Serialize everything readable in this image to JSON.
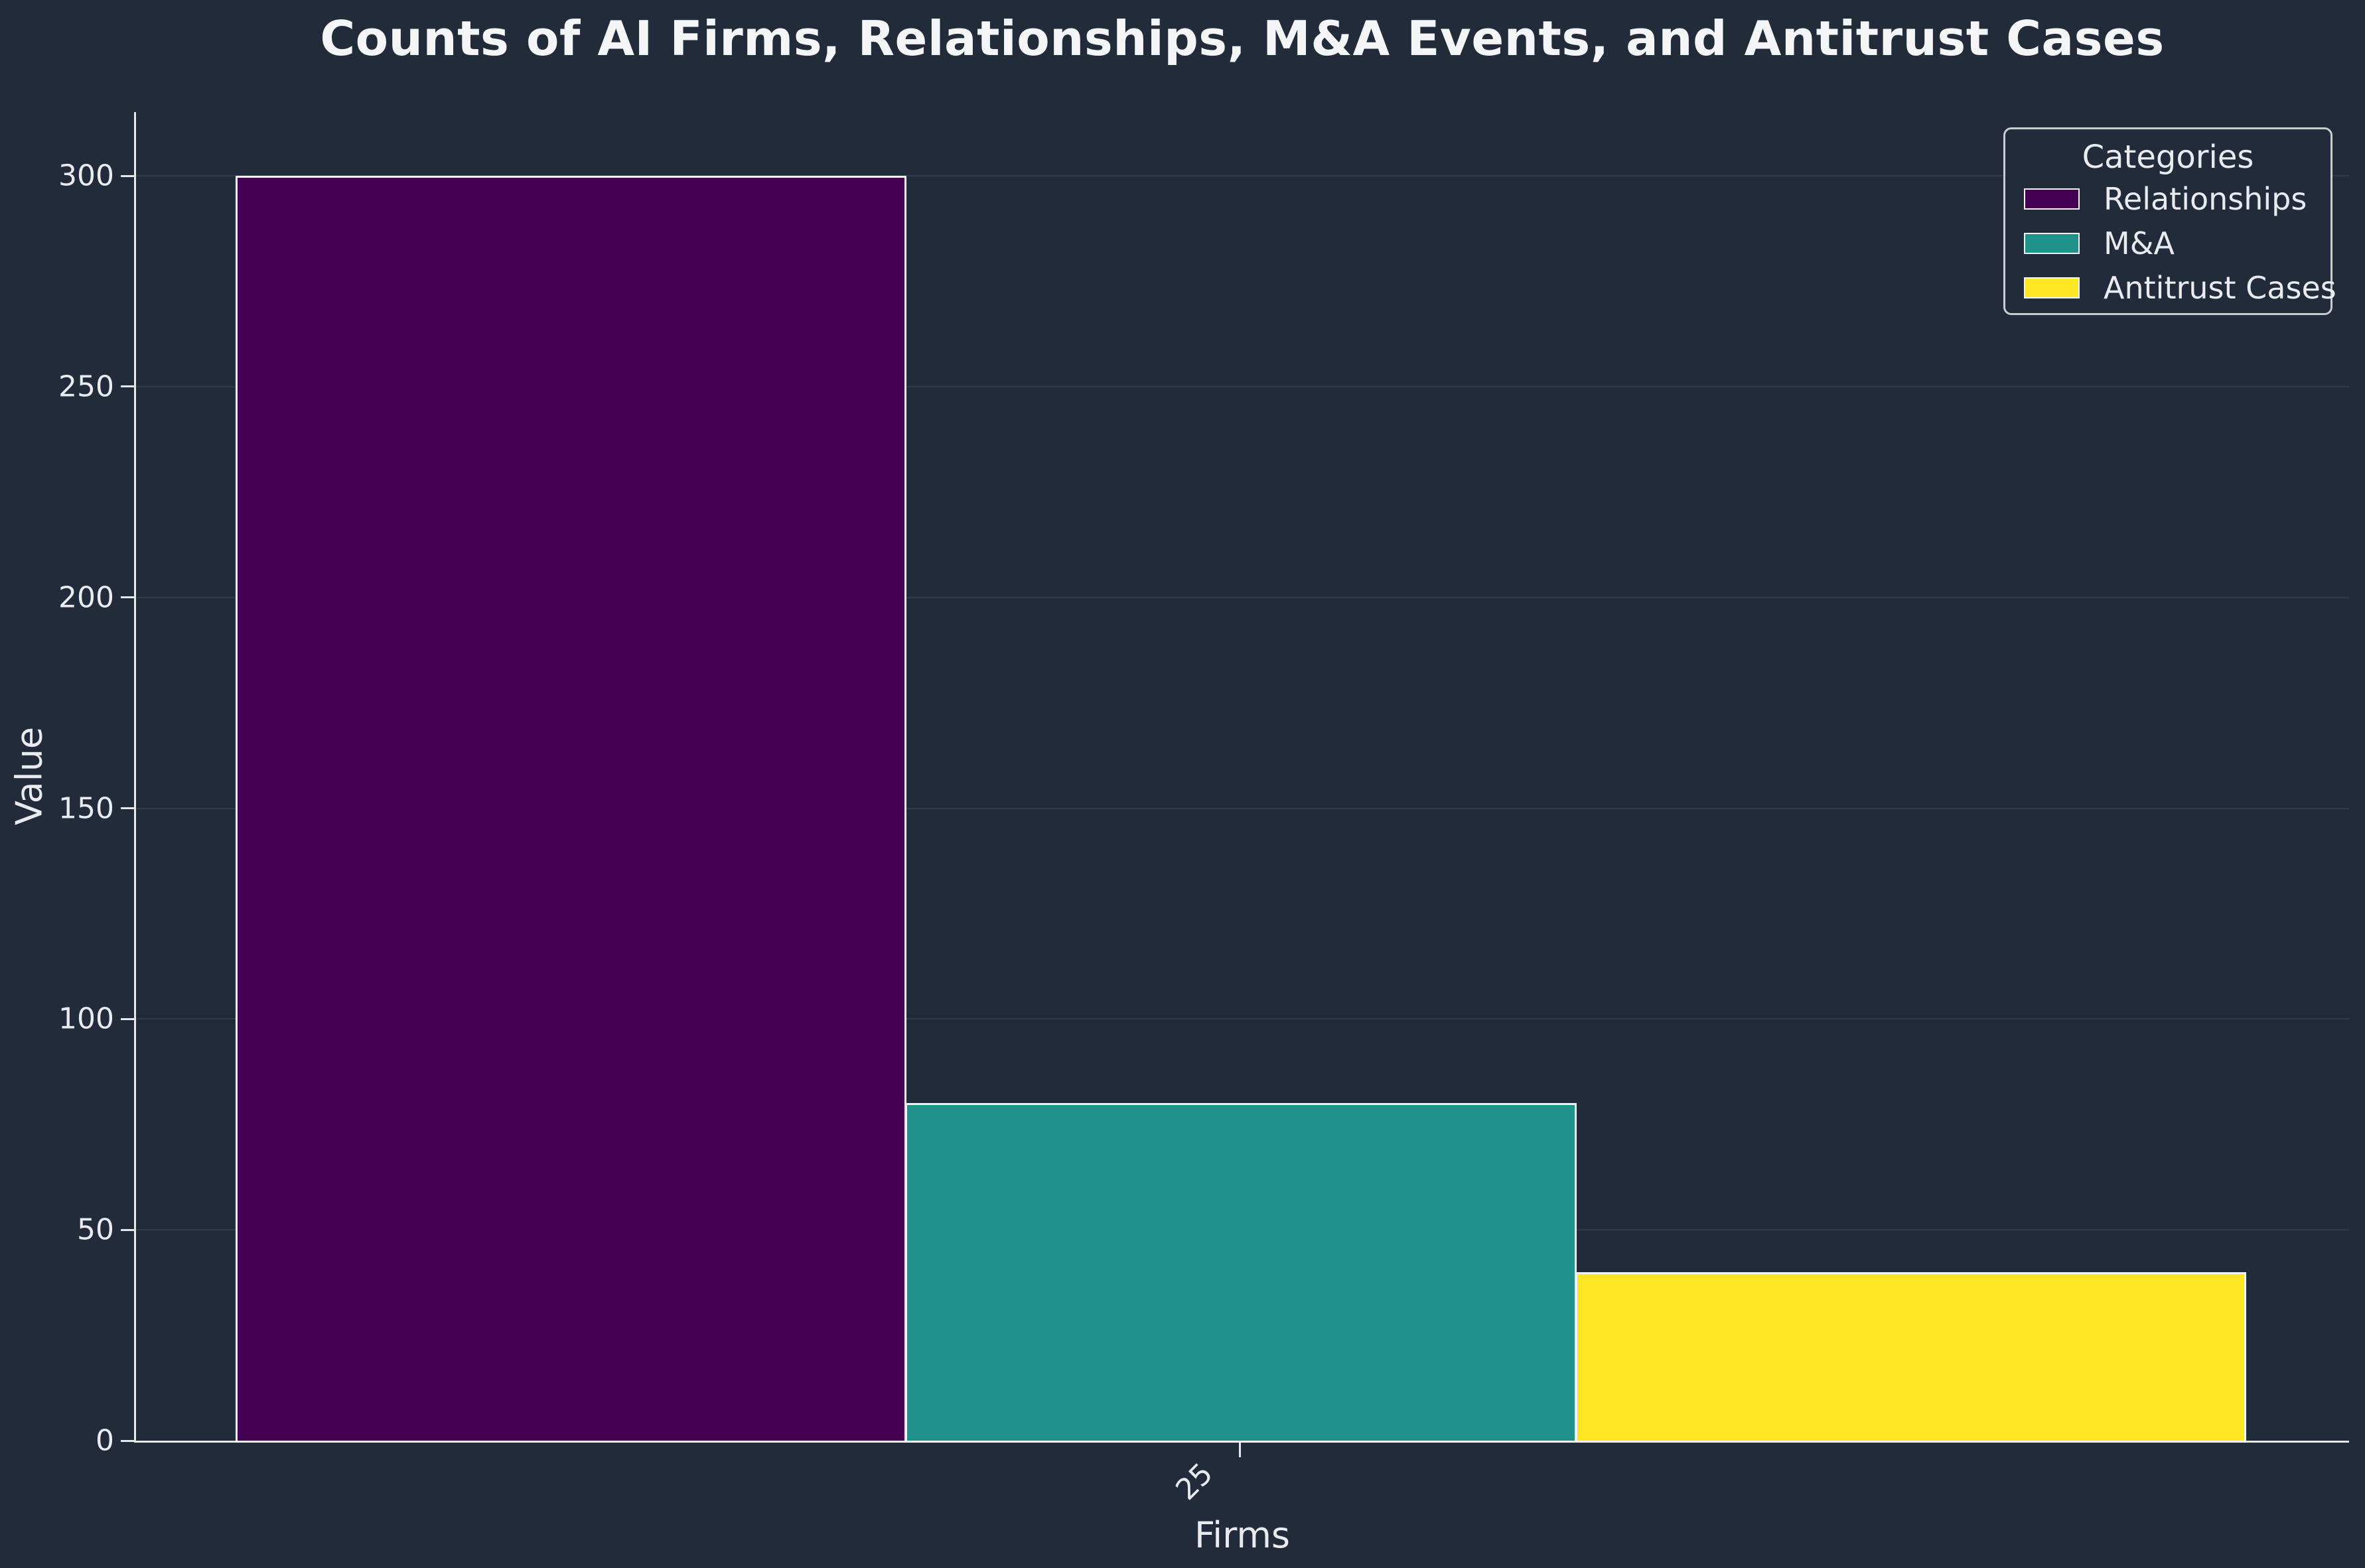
{
  "title": "Counts of AI Firms, Relationships, M&A Events, and Antitrust Cases",
  "chart_data": {
    "type": "bar",
    "title": "Counts of AI Firms, Relationships, M&A Events, and Antitrust Cases",
    "xlabel": "Firms",
    "ylabel": "Value",
    "x_tick_labels": [
      "25"
    ],
    "categories": [
      "Relationships",
      "M&A",
      "Antitrust Cases"
    ],
    "series": [
      {
        "name": "Relationships",
        "values": [
          300
        ],
        "color": "#440154"
      },
      {
        "name": "M&A",
        "values": [
          80
        ],
        "color": "#21918C"
      },
      {
        "name": "Antitrust Cases",
        "values": [
          40
        ],
        "color": "#FDE725"
      }
    ],
    "yticks": [
      0,
      50,
      100,
      150,
      200,
      250,
      300
    ],
    "ylim": [
      0,
      315
    ],
    "grid": true,
    "legend": {
      "title": "Categories",
      "position": "upper-right",
      "entries": [
        {
          "label": "Relationships",
          "color": "#440154"
        },
        {
          "label": "M&A",
          "color": "#21918C"
        },
        {
          "label": "Antitrust Cases",
          "color": "#FDE725"
        }
      ]
    }
  },
  "colors": {
    "background": "#212B3A",
    "text": "#E9EBEE",
    "axis": "#E6E8EA",
    "bar_edge": "#F2F3F4",
    "legend_border": "#C9CCD0"
  }
}
